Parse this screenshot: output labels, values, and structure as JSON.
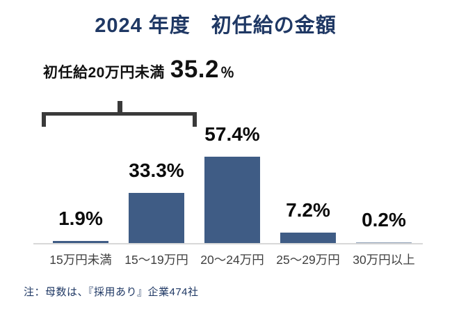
{
  "title": "2024 年度　初任給の金額",
  "annotation": {
    "label": "初任給20万円未満",
    "value": "35.2",
    "unit": "％"
  },
  "note": "注：母数は、『採用あり』企業474社",
  "colors": {
    "bar": "#3F5C85",
    "bar_small": "#8E9FB6",
    "title_text": "#1F3864",
    "note_text": "#1F3864",
    "bracket": "#3A3A3A",
    "axis_line": "#D8D8D8",
    "value_label": "#0B0B0B",
    "category_label": "#3F3F3F"
  },
  "chart_data": {
    "type": "bar",
    "title": "2024 年度　初任給の金額",
    "categories": [
      "15万円未満",
      "15〜19万円",
      "20〜24万円",
      "25〜29万円",
      "30万円以上"
    ],
    "values": [
      1.9,
      33.3,
      57.4,
      7.2,
      0.2
    ],
    "value_labels": [
      "1.9%",
      "33.3%",
      "57.4%",
      "7.2%",
      "0.2%"
    ],
    "xlabel": "",
    "ylabel": "",
    "ylim": [
      0,
      60
    ],
    "grid": false,
    "legend": false,
    "annotation_group": {
      "label": "初任給20万円未満",
      "value_pct": 35.2,
      "covers_categories": [
        "15万円未満",
        "15〜19万円"
      ]
    }
  }
}
